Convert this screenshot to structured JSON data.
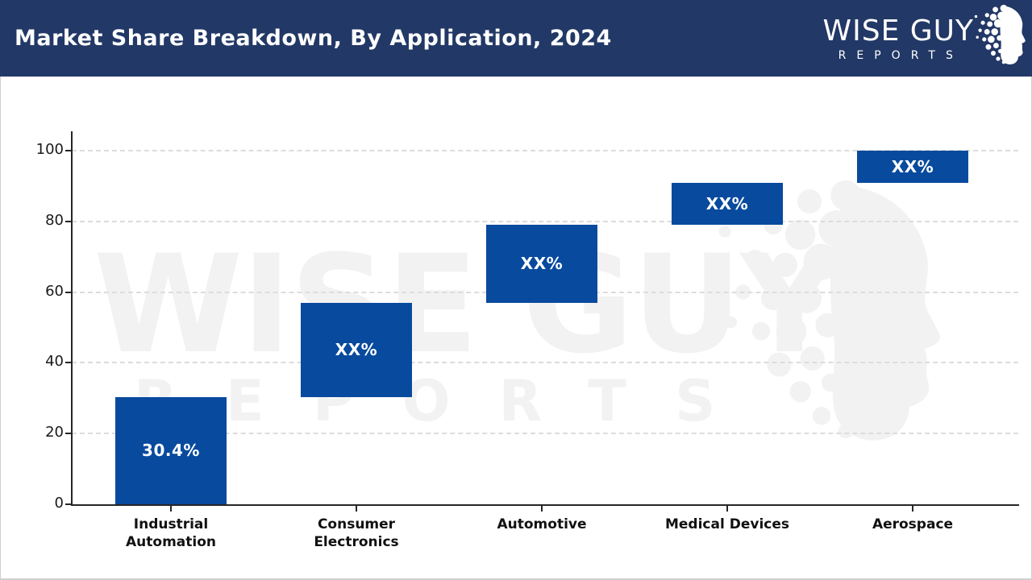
{
  "header": {
    "title": "Market Share Breakdown, By Application, 2024",
    "logo": {
      "line1": "WISE GUY",
      "line2": "REPORTS",
      "head_icon": "dotted-face-profile-icon"
    }
  },
  "watermark": {
    "line1": "WISE GUY",
    "line2": "REPORTS",
    "head_icon": "dotted-face-profile-icon"
  },
  "colors": {
    "header_bg": "#223866",
    "bar_fill": "#084a9e",
    "bar_label": "#ffffff",
    "grid": "#dcdcdc",
    "axis": "#262626",
    "watermark": "#f2f2f2",
    "title_text": "#ffffff"
  },
  "chart_data": {
    "type": "bar",
    "subtype": "waterfall",
    "title": "Market Share Breakdown, By Application, 2024",
    "xlabel": "",
    "ylabel": "",
    "ylim": [
      0,
      100
    ],
    "yticks": [
      0,
      20,
      40,
      60,
      80,
      100
    ],
    "grid": "dashed-horizontal",
    "legend": "none",
    "categories": [
      "Industrial Automation",
      "Consumer Electronics",
      "Automotive",
      "Medical Devices",
      "Aerospace"
    ],
    "category_lines": [
      [
        "Industrial",
        "Automation"
      ],
      [
        "Consumer",
        "Electronics"
      ],
      [
        "Automotive"
      ],
      [
        "Medical Devices"
      ],
      [
        "Aerospace"
      ]
    ],
    "segments": [
      {
        "category": "Industrial Automation",
        "start": 0,
        "end": 30.4,
        "label": "30.4%"
      },
      {
        "category": "Consumer Electronics",
        "start": 30.4,
        "end": 57,
        "label": "XX%"
      },
      {
        "category": "Automotive",
        "start": 57,
        "end": 79,
        "label": "XX%"
      },
      {
        "category": "Medical Devices",
        "start": 79,
        "end": 91,
        "label": "XX%"
      },
      {
        "category": "Aerospace",
        "start": 91,
        "end": 100,
        "label": "XX%"
      }
    ]
  }
}
